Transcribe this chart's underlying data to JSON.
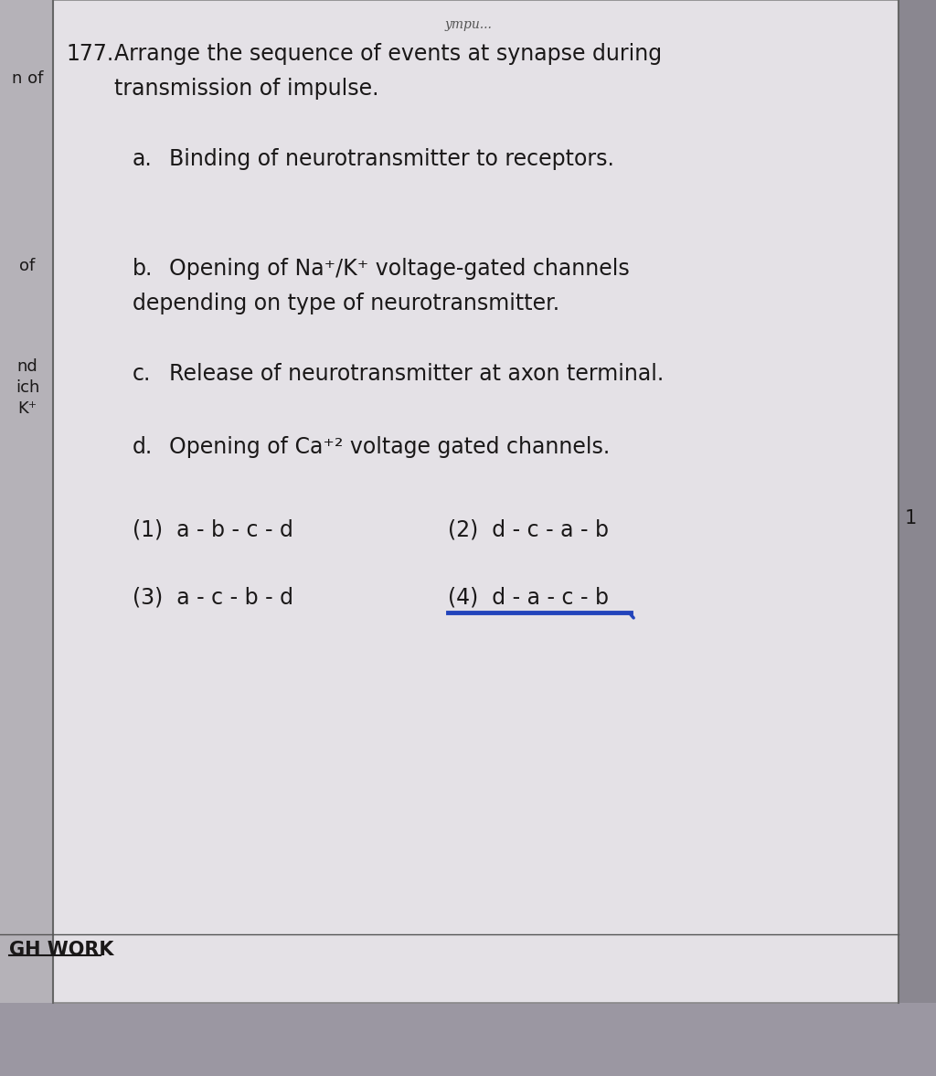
{
  "bg_color": "#9b97a2",
  "page_color": "#dddadf",
  "page_inner_color": "#e8e5ea",
  "left_col_color": "#c8c5cc",
  "right_col_color": "#b8b5bc",
  "text_color": "#1a1818",
  "blue_underline_color": "#2244bb",
  "question_number": "177.",
  "question_line1": "Arrange the sequence of events at synapse during",
  "question_line2": "transmission of impulse.",
  "option_a_label": "a.",
  "option_a_text": "Binding of neurotransmitter to receptors.",
  "option_b_label": "b.",
  "option_b_line1": "Opening of Na⁺/K⁺ voltage-gated channels",
  "option_b_line2": "depending on type of neurotransmitter.",
  "option_c_label": "c.",
  "option_c_text": "Release of neurotransmitter at axon terminal.",
  "option_d_label": "d.",
  "option_d_text": "Opening of Ca⁺² voltage gated channels.",
  "choice_1": "(1)  a - b - c - d",
  "choice_2": "(2)  d - c - a - b",
  "choice_3": "(3)  a - c - b - d",
  "choice_4": "(4)  d - a - c - b",
  "margin_text_1": "ı of",
  "margin_text_2": "of",
  "margin_text_3a": "nd",
  "margin_text_3b": "ich",
  "margin_text_3c": "K⁺",
  "footer_text": "GH WORK",
  "page_number": "1",
  "top_partial_word": "ympu..."
}
